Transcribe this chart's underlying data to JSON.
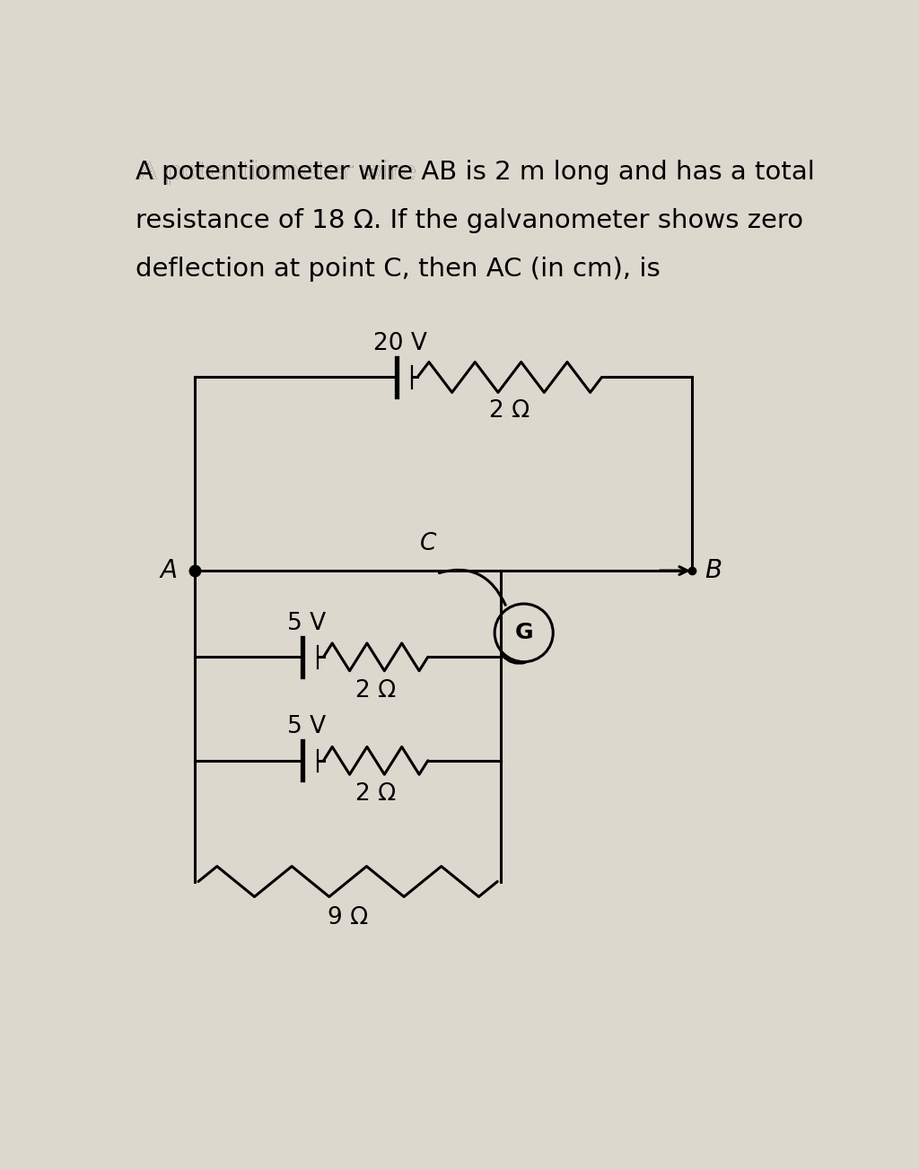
{
  "bg_color": "#ddd8ce",
  "text_color": "#000000",
  "line_color": "#000000",
  "title_line1": "A potentiometer wire ",
  "title_AB": "AB",
  "title_line1b": " is 2 m long and has a total",
  "title_line2a": "resistance of 18 Ω. If the galvanometer shows zero",
  "title_line3a": "deflection at point ",
  "title_C": "C",
  "title_line3b": ", then ",
  "title_AC": "AC",
  "title_line3c": " (in cm), is",
  "label_20V": "20 V",
  "label_2ohm_top": "2 Ω",
  "label_A": "A",
  "label_B": "B",
  "label_C": "C",
  "label_G": "G",
  "label_5V_1": "5 V",
  "label_2ohm_1": "2 Ω",
  "label_5V_2": "5 V",
  "label_2ohm_2": "2 Ω",
  "label_9ohm": "9 Ω",
  "lw": 2.2,
  "title_fontsize": 21,
  "circuit_fontsize": 19
}
